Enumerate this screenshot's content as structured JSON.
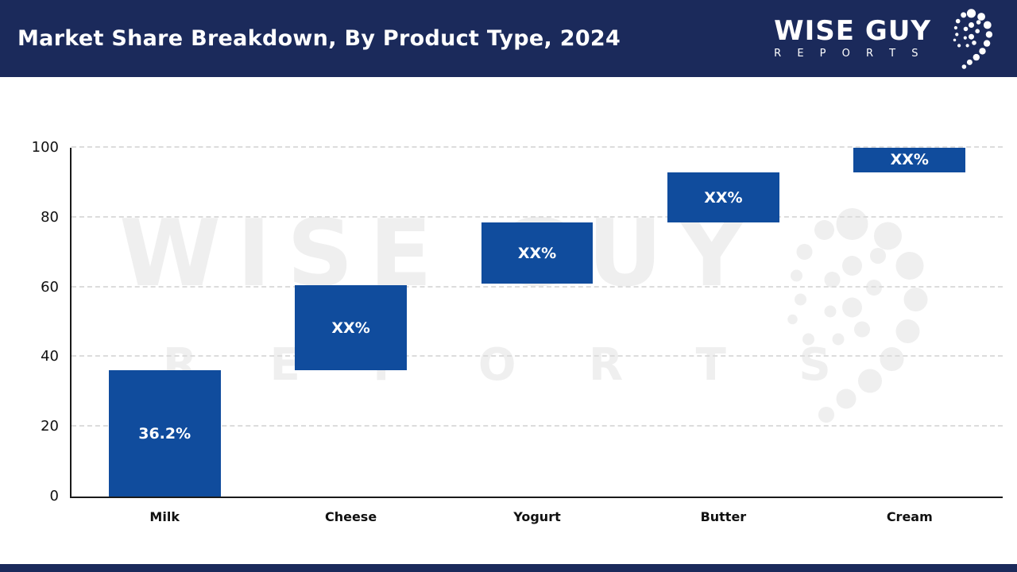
{
  "header": {
    "title": "Market Share Breakdown, By Product Type, 2024",
    "logo_line1": "WISE GUY",
    "logo_line2": "R E P O R T S",
    "bg_color": "#1b2a5b"
  },
  "watermark": {
    "line1": "WISE GUY",
    "line2": "R E P O R T S"
  },
  "chart_data": {
    "type": "bar",
    "subtype": "waterfall",
    "title": "Market Share Breakdown, By Product Type, 2024",
    "categories": [
      "Milk",
      "Cheese",
      "Yogurt",
      "Butter",
      "Cream"
    ],
    "segments": [
      {
        "category": "Milk",
        "start": 0,
        "end": 36.2,
        "label": "36.2%"
      },
      {
        "category": "Cheese",
        "start": 36.2,
        "end": 60.5,
        "label": "XX%"
      },
      {
        "category": "Yogurt",
        "start": 61,
        "end": 78.5,
        "label": "XX%"
      },
      {
        "category": "Butter",
        "start": 78.5,
        "end": 93,
        "label": "XX%"
      },
      {
        "category": "Cream",
        "start": 93,
        "end": 100,
        "label": "XX%"
      }
    ],
    "xlabel": "",
    "ylabel": "",
    "ylim": [
      0,
      100
    ],
    "yticks": [
      0,
      20,
      40,
      60,
      80,
      100
    ],
    "grid": "dashed-horizontal",
    "legend": "none",
    "bar_color": "#104c9d",
    "bar_label_color": "#ffffff"
  }
}
